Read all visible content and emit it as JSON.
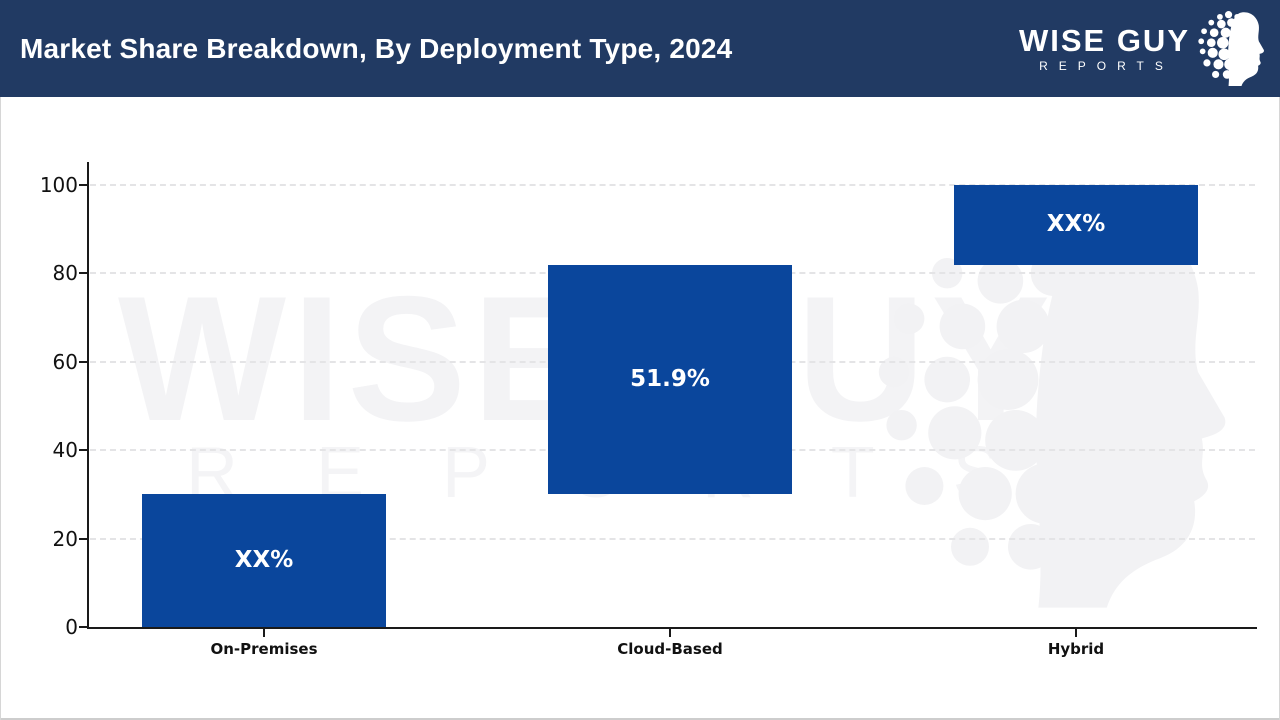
{
  "header": {
    "title": "Market Share Breakdown, By Deployment Type, 2024",
    "logo_line1": "WISE GUY",
    "logo_line2": "REPORTS",
    "bg_color": "#213a63"
  },
  "watermark": {
    "line1": "WISE GUY",
    "line2": "REPORTS"
  },
  "chart_data": {
    "type": "bar",
    "variant": "floating-stacked-breakdown",
    "title": "Market Share Breakdown, By Deployment Type, 2024",
    "categories": [
      "On-Premises",
      "Cloud-Based",
      "Hybrid"
    ],
    "segments": [
      {
        "category": "On-Premises",
        "from": 0,
        "to": 30,
        "value_label": "XX%"
      },
      {
        "category": "Cloud-Based",
        "from": 30,
        "to": 81.9,
        "value_label": "51.9%"
      },
      {
        "category": "Hybrid",
        "from": 81.9,
        "to": 100,
        "value_label": "XX%"
      }
    ],
    "values": [
      30,
      51.9,
      18.1
    ],
    "xlabel": "",
    "ylabel": "",
    "y_ticks": [
      0,
      20,
      40,
      60,
      80,
      100
    ],
    "ylim": [
      0,
      105
    ],
    "grid": "horizontal-dashed",
    "bar_color": "#0a469c",
    "label_color": "#ffffff"
  }
}
